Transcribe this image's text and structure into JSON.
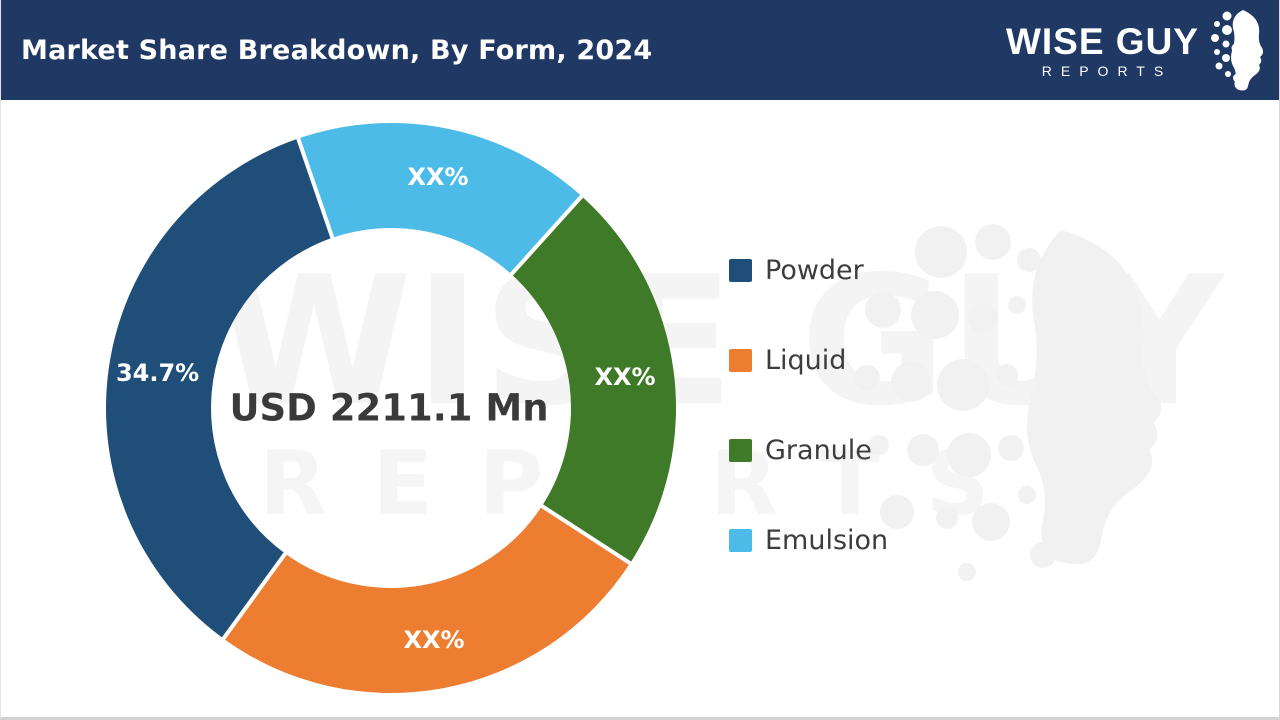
{
  "header": {
    "title": "Market Share Breakdown, By Form, 2024",
    "background_color": "#1f3864",
    "logo": {
      "line1": "WISE GUY",
      "line2": "REPORTS"
    }
  },
  "watermark": {
    "line1": "WISE GUY",
    "line2": "REPORTS"
  },
  "chart_data": {
    "type": "donut",
    "title": "Market Share Breakdown, By Form, 2024",
    "center_label": "USD 2211.1 Mn",
    "start_angle_deg": 341,
    "legend_position": "right",
    "segments": [
      {
        "label": "Emulsion",
        "display_value": "XX%",
        "pct_estimated": 16.9,
        "angle_deg": 61,
        "color": "#4dbbe8"
      },
      {
        "label": "Granule",
        "display_value": "XX%",
        "pct_estimated": 22.5,
        "angle_deg": 81,
        "color": "#3f7a28"
      },
      {
        "label": "Liquid",
        "display_value": "XX%",
        "pct_estimated": 25.9,
        "angle_deg": 93,
        "color": "#ed7d31"
      },
      {
        "label": "Powder",
        "display_value": "34.7%",
        "pct_estimated": 34.7,
        "angle_deg": 125,
        "color": "#1f4e79"
      }
    ]
  },
  "legend": {
    "items": [
      {
        "label": "Powder",
        "color": "#1f4e79"
      },
      {
        "label": "Liquid",
        "color": "#ed7d31"
      },
      {
        "label": "Granule",
        "color": "#3f7a28"
      },
      {
        "label": "Emulsion",
        "color": "#4dbbe8"
      }
    ]
  },
  "colors": {
    "header_navy": "#1f3864",
    "center_text": "#3a3a3a",
    "watermark": "#f4f4f4",
    "bottom_border": "#d2d2d2"
  }
}
